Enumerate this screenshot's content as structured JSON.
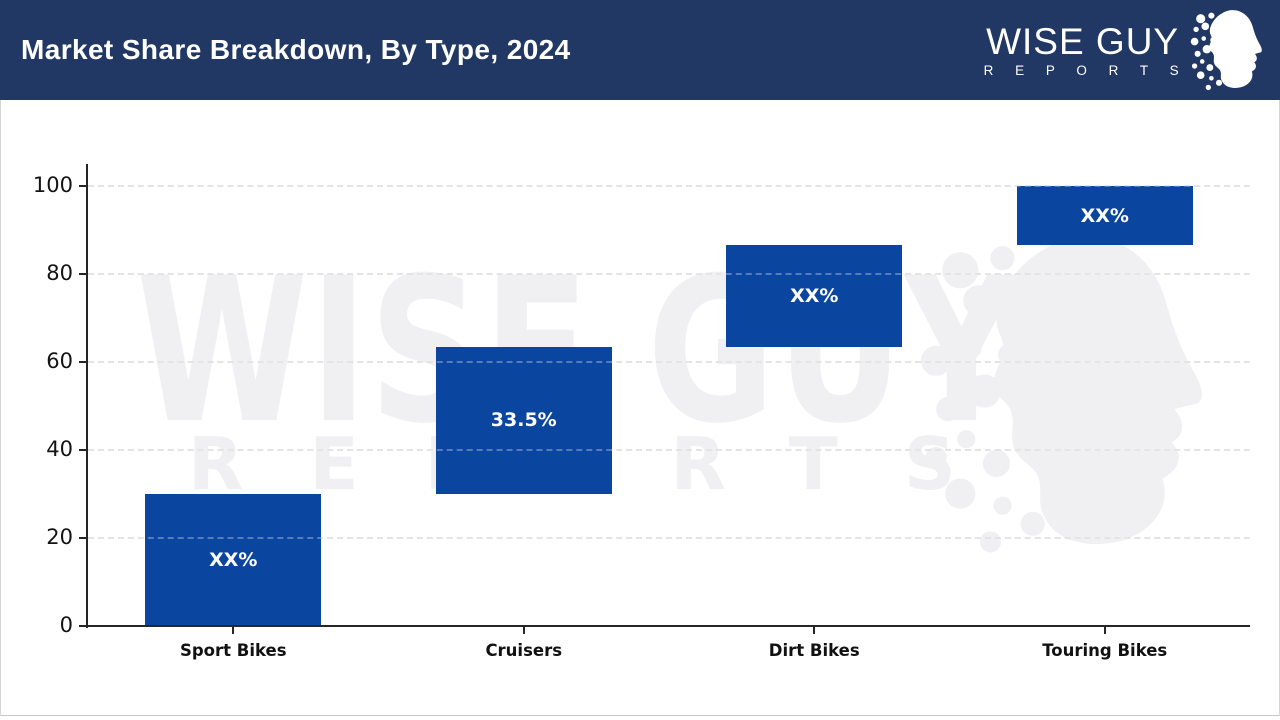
{
  "header": {
    "title": "Market Share Breakdown, By Type, 2024"
  },
  "logo": {
    "line1": "WISE GUY",
    "line2": "R E P O R T S"
  },
  "watermark": {
    "line1": "WISE GUY",
    "line2": "REPORTS"
  },
  "colors": {
    "header_bg": "#213764",
    "bar": "#0a45a0",
    "bar_label": "#ffffff",
    "axis": "#262626",
    "grid": "#d9d9d9",
    "tick_label": "#141414",
    "watermark": "#f0f0f2"
  },
  "chart_data": {
    "type": "bar",
    "variant": "floating-bar (waterfall style, each bar spans a value range)",
    "title": "Market Share Breakdown, By Type, 2024",
    "categories": [
      "Sport Bikes",
      "Cruisers",
      "Dirt Bikes",
      "Touring Bikes"
    ],
    "series": [
      {
        "name": "Market share segment",
        "ranges": [
          [
            0,
            30
          ],
          [
            30,
            63.5
          ],
          [
            63.5,
            86.5
          ],
          [
            86.5,
            100
          ]
        ]
      }
    ],
    "bar_labels": [
      "XX%",
      "33.5%",
      "XX%",
      "XX%"
    ],
    "xlabel": "",
    "ylabel": "",
    "yticks": [
      0,
      20,
      40,
      60,
      80,
      100
    ],
    "ylim": [
      0,
      105
    ],
    "grid": "horizontal dashed gridlines at y ticks",
    "legend": "none"
  }
}
